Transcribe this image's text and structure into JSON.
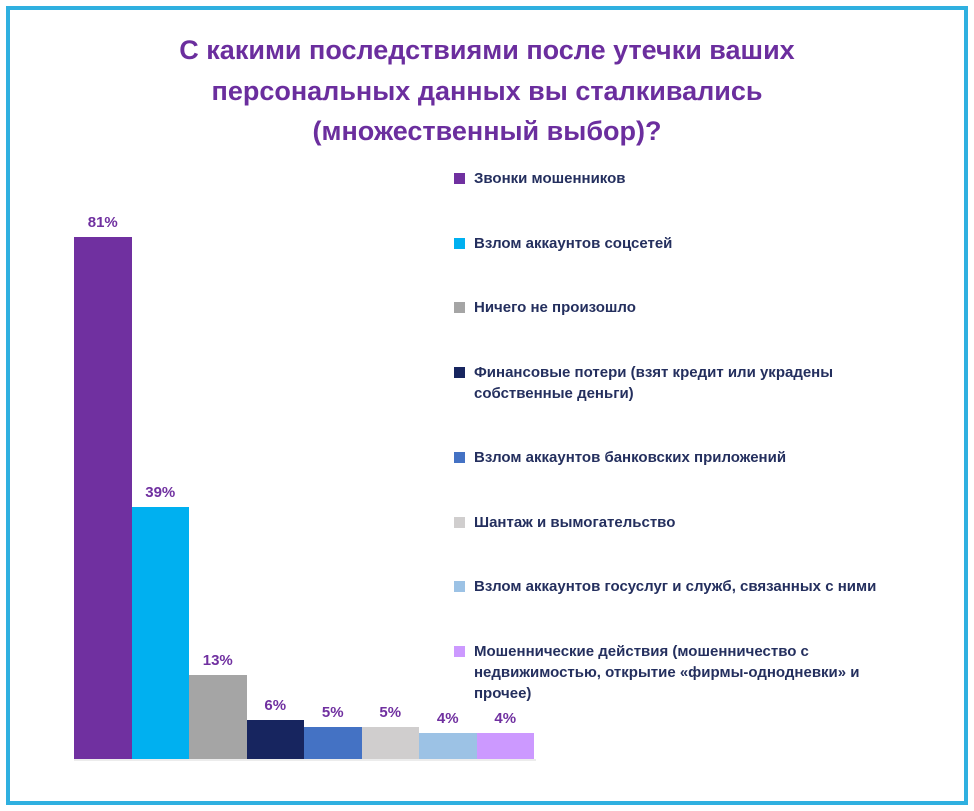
{
  "frame": {
    "border_color": "#2FB0E0",
    "background_color": "#FFFFFF"
  },
  "chart_data": {
    "type": "bar",
    "title": "С какими последствиями после утечки ваших персональных данных вы сталкивались (множественный выбор)?",
    "title_color": "#6B2E9E",
    "categories": [
      "Звонки мошенников",
      "Взлом аккаунтов соцсетей",
      "Ничего не произошло",
      "Финансовые потери (взят кредит или украдены собственные деньги)",
      "Взлом аккаунтов банковских приложений",
      "Шантаж и вымогательство",
      "Взлом аккаунтов госуслуг и служб, связанных с ними",
      "Мошеннические действия (мошенничество с недвижимостью, открытие «фирмы-однодневки» и прочее)"
    ],
    "values": [
      81,
      39,
      13,
      6,
      5,
      5,
      4,
      4
    ],
    "value_labels": [
      "81%",
      "39%",
      "13%",
      "6%",
      "5%",
      "5%",
      "4%",
      "4%"
    ],
    "colors": [
      "#7030A0",
      "#00B0F0",
      "#A5A5A5",
      "#17255F",
      "#4472C4",
      "#D0CECE",
      "#9CC2E5",
      "#CC99FF"
    ],
    "value_label_color": "#7030A0",
    "legend_text_color": "#242F5E",
    "ylim": [
      0,
      90
    ],
    "grid": false,
    "legend_position": "right",
    "xlabel": "",
    "ylabel": ""
  }
}
